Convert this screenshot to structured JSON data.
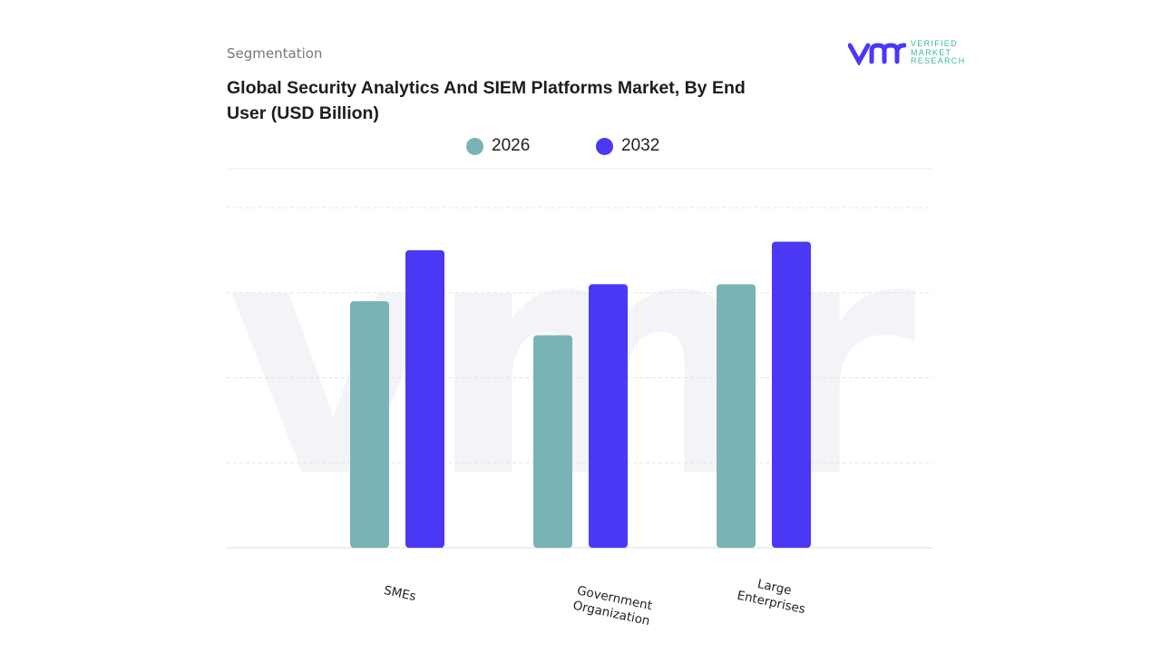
{
  "header": {
    "segment_label": "Segmentation",
    "title": "Global Security Analytics And SIEM Platforms Market, By End User (USD Billion)"
  },
  "logo": {
    "text_lines": [
      "VERIFIED",
      "MARKET",
      "RESEARCH"
    ],
    "mark": "vmr"
  },
  "chart_data": {
    "type": "bar",
    "title": "Global Security Analytics And SIEM Platforms Market, By End User (USD Billion)",
    "categories": [
      "SMEs",
      "Government Organization",
      "Large Enterprises"
    ],
    "category_lines": [
      [
        "SMEs"
      ],
      [
        "Government",
        "Organization"
      ],
      [
        "Large",
        "Enterprises"
      ]
    ],
    "series": [
      {
        "name": "2026",
        "color": "#7ab3b6",
        "values": [
          2.9,
          2.5,
          3.1
        ]
      },
      {
        "name": "2032",
        "color": "#4b38f5",
        "values": [
          3.5,
          3.1,
          3.6
        ]
      }
    ],
    "ylim": [
      0,
      4
    ],
    "grid": true,
    "legend_position": "top-center",
    "xlabel": "",
    "ylabel": ""
  }
}
